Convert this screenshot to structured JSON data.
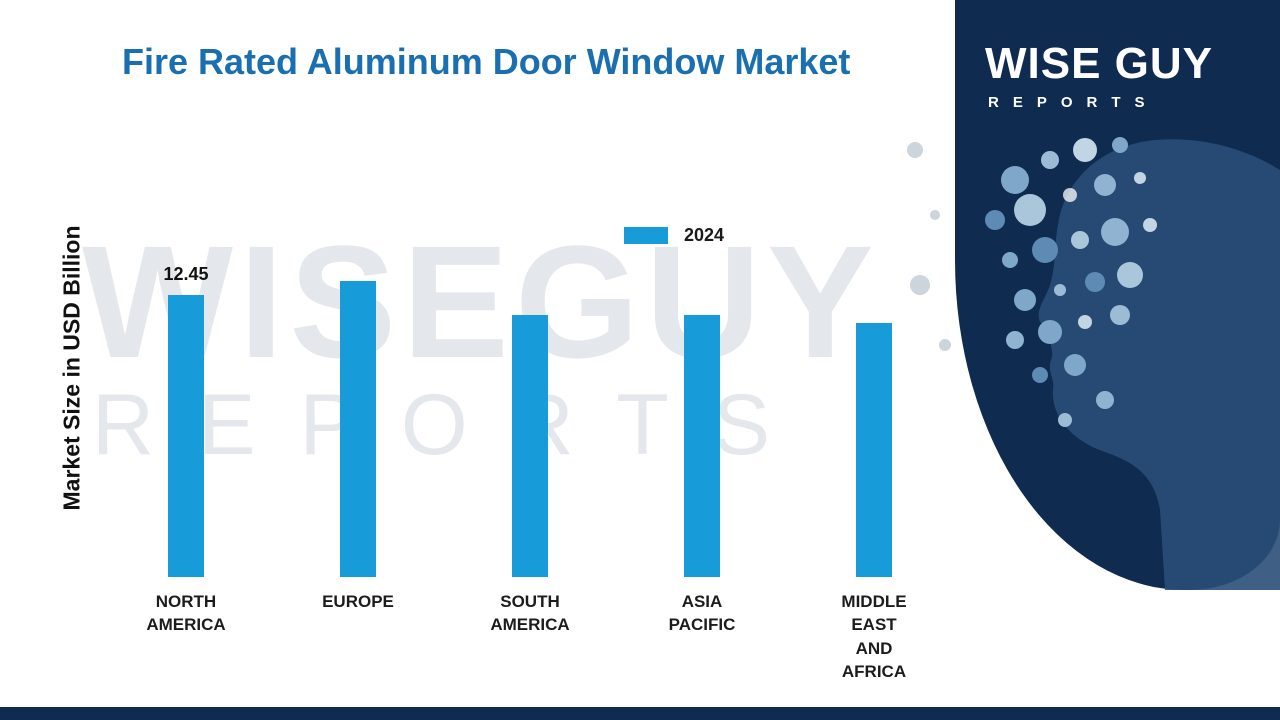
{
  "page": {
    "title": "Fire Rated Aluminum Door Window Market"
  },
  "logo": {
    "wordmark": "WISE GUY",
    "subtitle": "REPORTS"
  },
  "watermark": {
    "line1": "WISEGUY",
    "line2": "REPORTS"
  },
  "chart_data": {
    "type": "bar",
    "title": "Fire Rated Aluminum Door Window Market",
    "ylabel": "Market Size in USD Billion",
    "xlabel": "",
    "unit": "USD Billion",
    "categories": [
      "NORTH AMERICA",
      "EUROPE",
      "SOUTH AMERICA",
      "ASIA PACIFIC",
      "MIDDLE EAST AND AFRICA"
    ],
    "tick_labels": [
      "NORTH\nAMERICA",
      "EUROPE",
      "SOUTH\nAMERICA",
      "ASIA\nPACIFIC",
      "MIDDLE\nEAST\nAND\nAFRICA"
    ],
    "series": [
      {
        "name": "2024",
        "values": [
          12.45,
          13.05,
          11.55,
          11.55,
          11.2
        ]
      }
    ],
    "value_labels": [
      "12.45",
      "",
      "",
      "",
      ""
    ],
    "ylim": [
      0,
      17.5
    ],
    "grid": false,
    "legend": {
      "position": "top-right-of-plot",
      "entries": [
        "2024"
      ]
    },
    "bar_color": "#189cd9"
  },
  "colors": {
    "title_blue": "#1a6fb0",
    "bar_blue": "#189cd9",
    "navy": "#0f2b50",
    "watermark_gray": "#e4e7eb"
  }
}
